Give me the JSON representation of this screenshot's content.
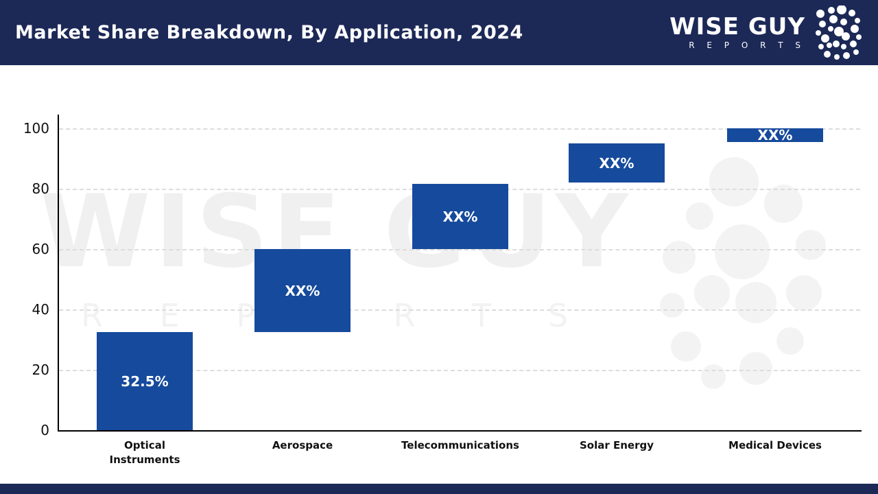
{
  "header": {
    "title": "Market Share Breakdown, By Application, 2024",
    "logo": {
      "line1": "WISE GUY",
      "line2": "R E P O R T S"
    }
  },
  "watermark": {
    "line1": "WISE GUY",
    "line2": "R E P O R T S"
  },
  "colors": {
    "header_bg": "#1c2957",
    "footer_bg": "#1c2957",
    "bar": "#164a9c",
    "bar_label": "#ffffff",
    "gridline": "#dcdcdc",
    "axis": "#000000"
  },
  "chart_data": {
    "type": "bar",
    "subtype": "waterfall",
    "title": "Market Share Breakdown, By Application, 2024",
    "categories": [
      "Optical Instruments",
      "Aerospace",
      "Telecommunications",
      "Solar Energy",
      "Medical Devices"
    ],
    "tick_labels": [
      "Optical\nInstruments",
      "Aerospace",
      "Telecommunications",
      "Solar Energy",
      "Medical Devices"
    ],
    "segments": [
      {
        "category": "Optical Instruments",
        "start": 0,
        "end": 32.5,
        "label": "32.5%"
      },
      {
        "category": "Aerospace",
        "start": 32.5,
        "end": 60,
        "label": "XX%"
      },
      {
        "category": "Telecommunications",
        "start": 60,
        "end": 81.5,
        "label": "XX%"
      },
      {
        "category": "Solar Energy",
        "start": 82,
        "end": 95,
        "label": "XX%"
      },
      {
        "category": "Medical Devices",
        "start": 95.5,
        "end": 100,
        "label": "XX%"
      }
    ],
    "ylim": [
      0,
      100
    ],
    "yticks": [
      0,
      20,
      40,
      60,
      80,
      100
    ],
    "grid": "horizontal-dashed",
    "legend": "none"
  }
}
